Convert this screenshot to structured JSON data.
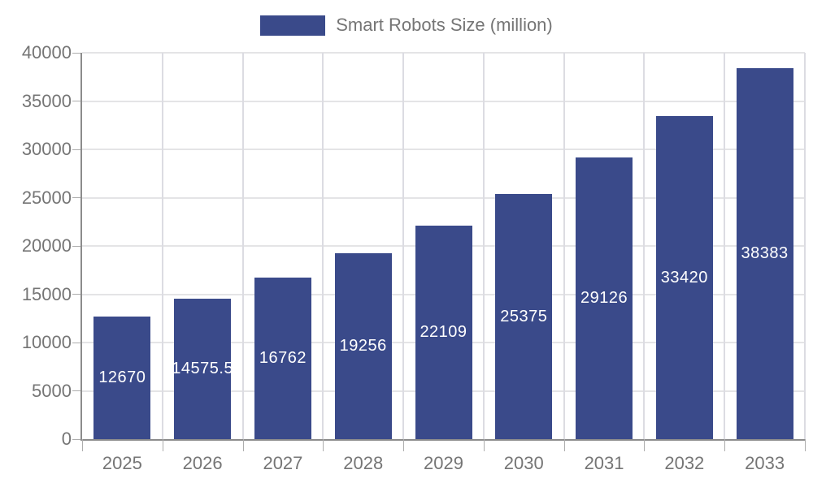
{
  "chart_data": {
    "type": "bar",
    "title": "Smart Robots Size (million)",
    "legend": "Smart Robots Size (million)",
    "legend_position": "top-center",
    "series_name": "Smart Robots Size (million)",
    "categories": [
      "2025",
      "2026",
      "2027",
      "2028",
      "2029",
      "2030",
      "2031",
      "2032",
      "2033"
    ],
    "values": [
      12670,
      14575.5,
      16762,
      19256,
      22109,
      25375,
      29126,
      33420,
      38383
    ],
    "xlabel": "",
    "ylabel": "",
    "ylim": [
      0,
      40000
    ],
    "ytick_step": 5000,
    "ytick_labels": [
      "0",
      "5000",
      "10000",
      "15000",
      "20000",
      "25000",
      "30000",
      "35000",
      "40000"
    ],
    "grid": true,
    "bar_label_position": "inside-center",
    "colors": {
      "bar": "#3A4A8A",
      "bar_label": "#FFFFFF",
      "axis_text": "#757575",
      "grid_line": "#E4E4E6",
      "grid_line_vertical": "#DCDCE2",
      "axis_line": "#8C8C8C",
      "tick_line": "#ADADAD",
      "background": "#FFFFFF"
    }
  }
}
